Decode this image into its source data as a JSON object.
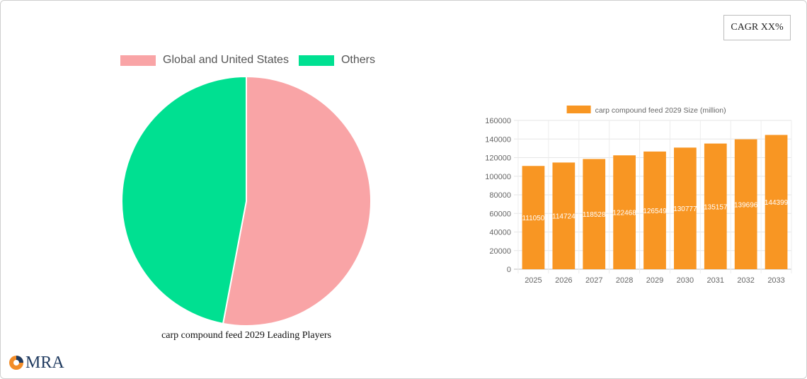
{
  "badge": {
    "label": "CAGR XX%"
  },
  "logo": {
    "text": "MRA"
  },
  "chart_data": [
    {
      "type": "pie",
      "title": "carp compound feed 2029 Leading Players",
      "legend_position": "top",
      "slices": [
        {
          "label": "Global and United States",
          "value": 53,
          "color": "#f9a4a6"
        },
        {
          "label": "Others",
          "value": 47,
          "color": "#00e091"
        }
      ]
    },
    {
      "type": "bar",
      "legend_position": "top",
      "grid": true,
      "categories": [
        "2025",
        "2026",
        "2027",
        "2028",
        "2029",
        "2030",
        "2031",
        "2032",
        "2033"
      ],
      "series": [
        {
          "name": "carp compound feed 2029 Size (million)",
          "color": "#f89623",
          "values": [
            111050,
            114724,
            118528,
            122468,
            126549,
            130777,
            135157,
            139696,
            144399
          ]
        }
      ],
      "ylim": [
        0,
        160000
      ],
      "yticks": [
        0,
        20000,
        40000,
        60000,
        80000,
        100000,
        120000,
        140000,
        160000
      ]
    }
  ]
}
